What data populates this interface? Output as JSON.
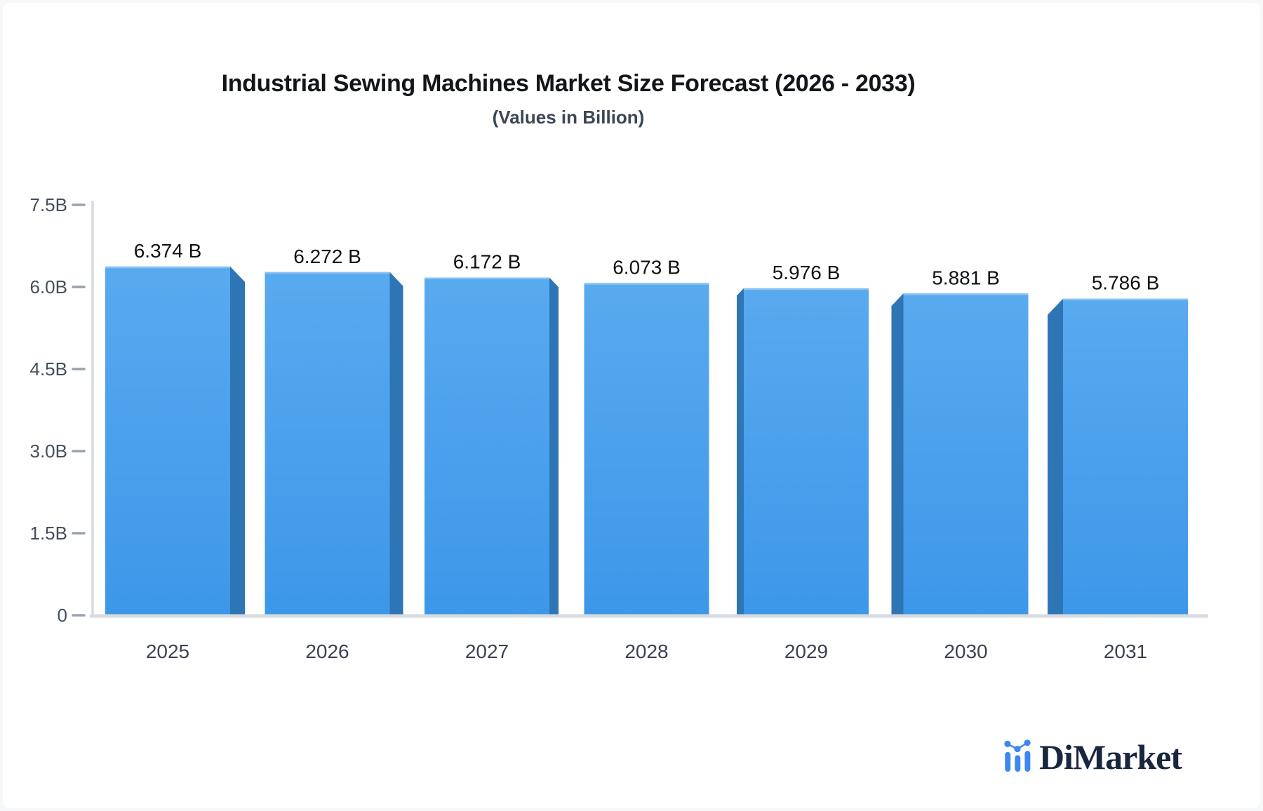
{
  "chart_data": {
    "type": "bar",
    "title": "Industrial Sewing Machines Market Size Forecast (2026 - 2033)",
    "subtitle": "(Values in Billion)",
    "categories": [
      "2025",
      "2026",
      "2027",
      "2028",
      "2029",
      "2030",
      "2031"
    ],
    "values": [
      6.374,
      6.272,
      6.172,
      6.073,
      5.976,
      5.881,
      5.786
    ],
    "value_labels": [
      "6.374 B",
      "6.272 B",
      "6.172 B",
      "6.073 B",
      "5.976 B",
      "5.881 B",
      "5.786 B"
    ],
    "xlabel": "",
    "ylabel": "",
    "ylim": [
      0,
      7.5
    ],
    "y_ticks": [
      {
        "value": 7.5,
        "label": "7.5B"
      },
      {
        "value": 6.0,
        "label": "6.0B"
      },
      {
        "value": 4.5,
        "label": "4.5B"
      },
      {
        "value": 3.0,
        "label": "3.0B"
      },
      {
        "value": 1.5,
        "label": "1.5B"
      },
      {
        "value": 0,
        "label": "0"
      }
    ],
    "grid": false,
    "legend": false,
    "bar_style": "3d-extruded-gradient"
  },
  "logo": {
    "text": "DiMarket",
    "icon": "mini-bar-line-chart-icon"
  },
  "colors": {
    "background": "#ffffff",
    "page_edge": "#f6f8fa",
    "bar_gradient_top": "#59aaef",
    "bar_gradient_bottom": "#3d97e9",
    "bar_top_edge_highlight": "#8cc3f5",
    "bar_side": "#2e75b5",
    "axis_line": "#d7dbe1",
    "tick_dash": "#9aa2ae",
    "tick_label": "#454e5d",
    "x_label": "#3b4252",
    "value_label": "#0f1215",
    "title": "#121519",
    "subtitle": "#3d4654",
    "logo_blue": "#3d87ee",
    "logo_navy": "#192640"
  }
}
